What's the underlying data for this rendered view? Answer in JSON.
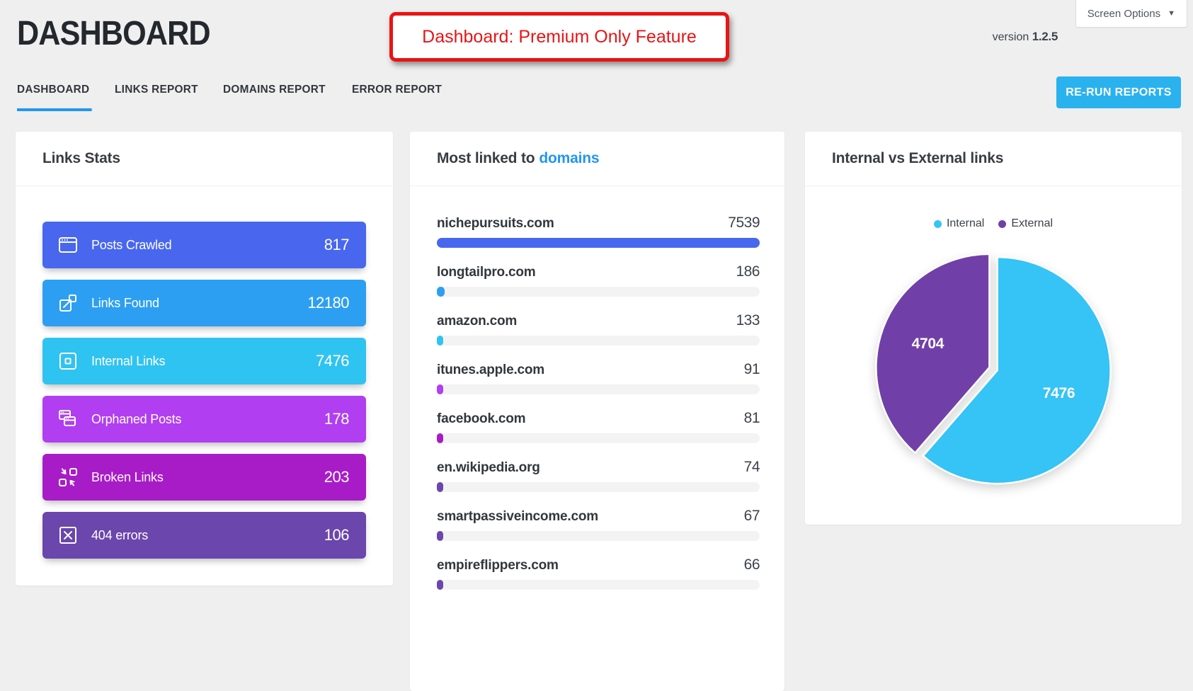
{
  "header": {
    "title": "DASHBOARD",
    "callout": "Dashboard: Premium Only Feature",
    "version_label": "version",
    "version_number": "1.2.5",
    "screen_options_label": "Screen Options",
    "rerun_button": "RE-RUN REPORTS"
  },
  "tabs": [
    {
      "label": "DASHBOARD",
      "active": true
    },
    {
      "label": "LINKS REPORT",
      "active": false
    },
    {
      "label": "DOMAINS REPORT",
      "active": false
    },
    {
      "label": "ERROR REPORT",
      "active": false
    }
  ],
  "links_stats": {
    "title": "Links Stats",
    "items": [
      {
        "label": "Posts Crawled",
        "value": "817",
        "color": "#4867ee",
        "icon": "browser-window-icon"
      },
      {
        "label": "Links Found",
        "value": "12180",
        "color": "#2d9ff2",
        "icon": "external-link-icon"
      },
      {
        "label": "Internal Links",
        "value": "7476",
        "color": "#2fc3f2",
        "icon": "nested-squares-icon"
      },
      {
        "label": "Orphaned Posts",
        "value": "178",
        "color": "#b13ef0",
        "icon": "stacked-windows-icon"
      },
      {
        "label": "Broken Links",
        "value": "203",
        "color": "#a81cc8",
        "icon": "broken-link-icon"
      },
      {
        "label": "404 errors",
        "value": "106",
        "color": "#6b46ac",
        "icon": "x-square-icon"
      }
    ]
  },
  "most_linked": {
    "title_prefix": "Most linked to",
    "title_link": "domains",
    "chart_data": {
      "type": "bar",
      "orientation": "horizontal",
      "categories": [
        "nichepursuits.com",
        "longtailpro.com",
        "amazon.com",
        "itunes.apple.com",
        "facebook.com",
        "en.wikipedia.org",
        "smartpassiveincome.com",
        "empireflippers.com"
      ],
      "values": [
        7539,
        186,
        133,
        91,
        81,
        74,
        67,
        66
      ],
      "colors": [
        "#4867ee",
        "#2d9ff2",
        "#2fc3f2",
        "#b13ef0",
        "#a81cc8",
        "#6b46ac",
        "#6b46ac",
        "#6b46ac"
      ],
      "track_color": "#f3f3f4",
      "xlim": [
        0,
        7539
      ]
    }
  },
  "pie": {
    "title": "Internal vs External links",
    "chart_data": {
      "type": "pie",
      "labels": [
        "Internal",
        "External"
      ],
      "values": [
        7476,
        4704
      ],
      "colors": [
        "#36c3f5",
        "#7040a8"
      ],
      "legend_position": "top",
      "start_angle_deg": 0,
      "direction": "clockwise"
    }
  }
}
